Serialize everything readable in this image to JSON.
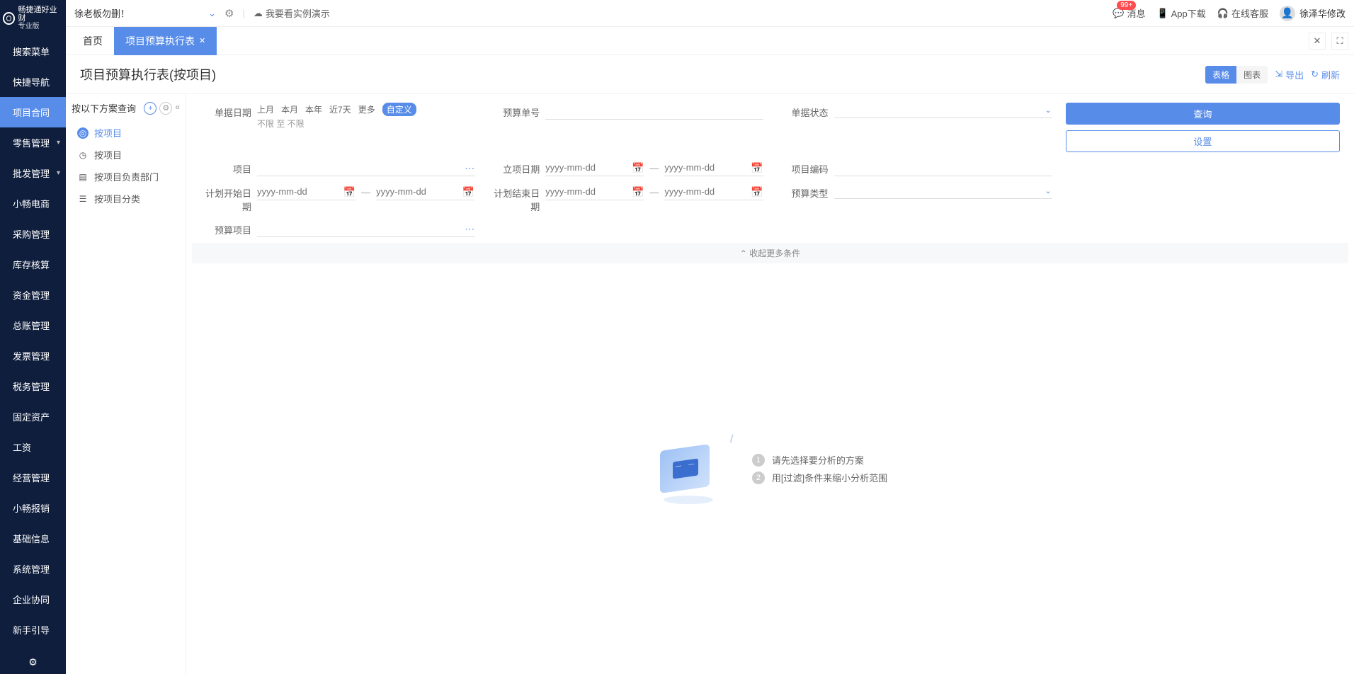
{
  "brand": {
    "name": "畅捷通好业财",
    "edition": "专业版"
  },
  "sidebar": {
    "items": [
      {
        "label": "搜索菜单",
        "expandable": false
      },
      {
        "label": "快捷导航",
        "expandable": false
      },
      {
        "label": "项目合同",
        "expandable": false,
        "active": true
      },
      {
        "label": "零售管理",
        "expandable": true
      },
      {
        "label": "批发管理",
        "expandable": true
      },
      {
        "label": "小畅电商",
        "expandable": false
      },
      {
        "label": "采购管理",
        "expandable": false
      },
      {
        "label": "库存核算",
        "expandable": false
      },
      {
        "label": "资金管理",
        "expandable": false
      },
      {
        "label": "总账管理",
        "expandable": false
      },
      {
        "label": "发票管理",
        "expandable": false
      },
      {
        "label": "税务管理",
        "expandable": false
      },
      {
        "label": "固定资产",
        "expandable": false
      },
      {
        "label": "工资",
        "expandable": false
      },
      {
        "label": "经营管理",
        "expandable": false
      },
      {
        "label": "小畅报销",
        "expandable": false
      },
      {
        "label": "基础信息",
        "expandable": false
      },
      {
        "label": "系统管理",
        "expandable": false
      },
      {
        "label": "企业协同",
        "expandable": false
      },
      {
        "label": "新手引导",
        "expandable": false
      }
    ]
  },
  "topbar": {
    "company": "徐老板勿删！",
    "demo_link": "我要看实例演示",
    "messages": {
      "label": "消息",
      "badge": "99+"
    },
    "download": "App下载",
    "support": "在线客服",
    "user": "徐泽华修改"
  },
  "tabs": {
    "home": "首页",
    "active": "项目预算执行表"
  },
  "page": {
    "title": "项目预算执行表(按项目)",
    "view_table": "表格",
    "view_chart": "图表",
    "export": "导出",
    "refresh": "刷新"
  },
  "schemes": {
    "header": "按以下方案查询",
    "items": [
      {
        "label": "按项目",
        "icon": "target",
        "active": true
      },
      {
        "label": "按项目",
        "icon": "clock"
      },
      {
        "label": "按项目负责部门",
        "icon": "chart"
      },
      {
        "label": "按项目分类",
        "icon": "list"
      }
    ]
  },
  "filters": {
    "doc_date_label": "单据日期",
    "date_presets": [
      "上月",
      "本月",
      "本年",
      "近7天",
      "更多"
    ],
    "date_custom": "自定义",
    "date_range_text": "不限 至 不限",
    "budget_no_label": "预算单号",
    "doc_status_label": "单据状态",
    "project_label": "项目",
    "establish_date_label": "立项日期",
    "project_code_label": "项目编码",
    "plan_start_label": "计划开始日期",
    "plan_end_label": "计划结束日期",
    "budget_type_label": "预算类型",
    "budget_item_label": "预算项目",
    "date_placeholder": "yyyy-mm-dd",
    "query_btn": "查询",
    "settings_btn": "设置"
  },
  "collapse_bar": "收起更多条件",
  "empty": {
    "step1": "请先选择要分析的方案",
    "step2": "用[过滤]条件来缩小分析范围"
  },
  "colors": {
    "primary": "#588ce9",
    "sidebar_bg": "#0f1e3d",
    "badge": "#ff4d4f",
    "border": "#eeeeee",
    "text_muted": "#999999"
  }
}
